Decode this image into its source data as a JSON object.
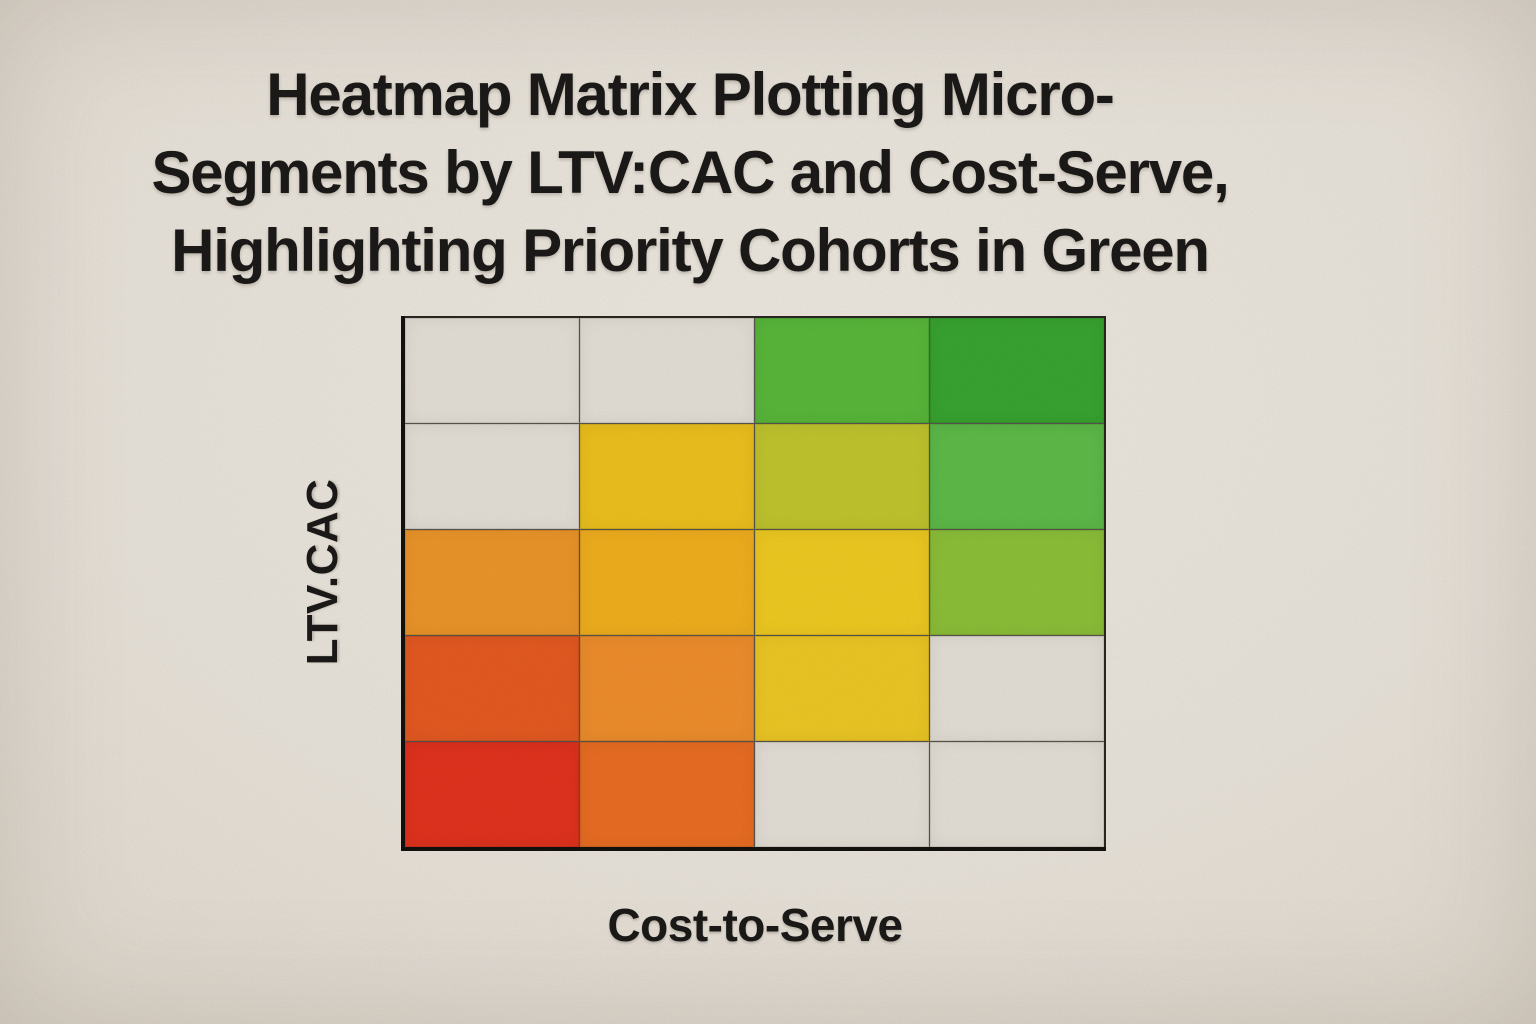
{
  "title": {
    "text": "Heatmap Matrix Plotting Micro-Segments by LTV:CAC and Cost-Serve, Highlighting Priority Cohorts in Green",
    "lines": [
      "Heatmap Matrix Plotting Micro-",
      "Segments by LTV:CAC and Cost-Serve,",
      "Highlighting Priority Cohorts in Green"
    ]
  },
  "chart_data": {
    "type": "heatmap",
    "title": "Heatmap Matrix Plotting Micro-Segments by LTV:CAC and Cost-Serve, Highlighting Priority Cohorts in Green",
    "xlabel": "Cost-to-Serve",
    "ylabel": "LTV.CAC",
    "rows": 5,
    "columns": 4,
    "x_tick_labels": [],
    "y_tick_labels": [],
    "legend": "none",
    "empty_cell_color": "#E9E4DB",
    "cell_colors_by_row_top_to_bottom": [
      [
        "#E9E4DB",
        "#E9E4DB",
        "#5BBC3C",
        "#3AA832"
      ],
      [
        "#E9E4DB",
        "#F2C51F",
        "#C5C92F",
        "#60BF4B"
      ],
      [
        "#F1992B",
        "#F6B31F",
        "#F4CF22",
        "#90C43A"
      ],
      [
        "#EA5C23",
        "#F4912E",
        "#F2CC26",
        "#E9E4DB"
      ],
      [
        "#E6341F",
        "#EF7024",
        "#E9E4DB",
        "#E9E4DB"
      ]
    ]
  },
  "colors": {
    "background": "#EFE9E0",
    "title_text": "#1C1B19",
    "axis_line": "#14120F",
    "grid_line": "#5A564E"
  }
}
